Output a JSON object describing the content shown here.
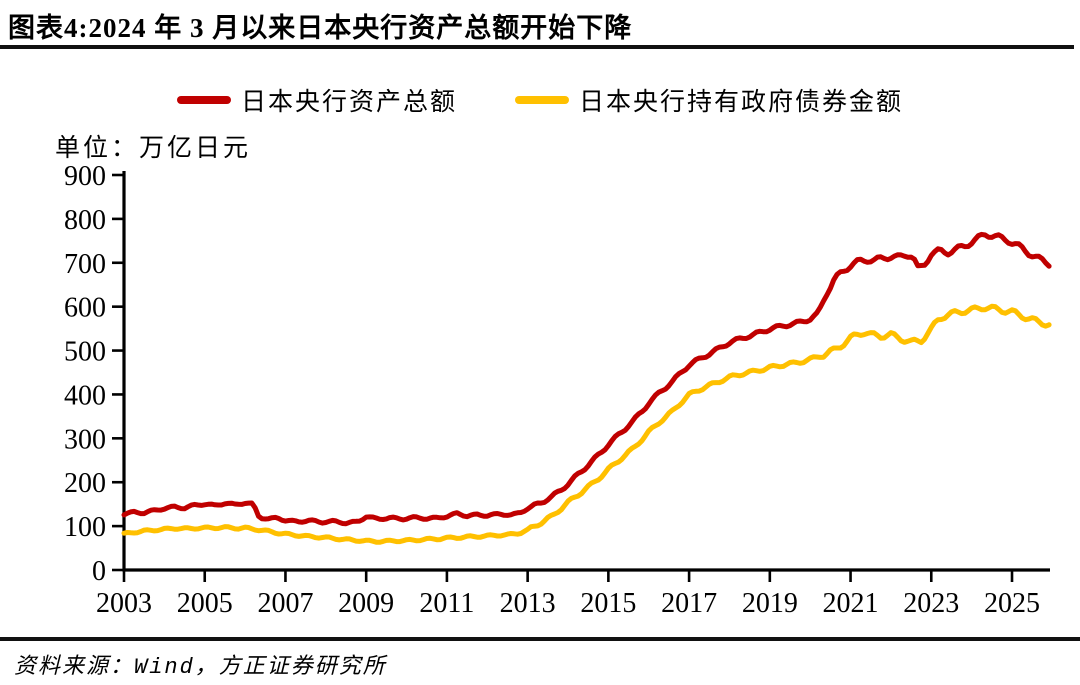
{
  "header": {
    "title": "图表4:2024 年 3 月以来日本央行资产总额开始下降"
  },
  "legend": {
    "items": [
      {
        "label": "日本央行资产总额",
        "color": "#C00000"
      },
      {
        "label": "日本央行持有政府债券金额",
        "color": "#FFC000"
      }
    ]
  },
  "chart": {
    "unit_label": "单位：万亿日元",
    "y_axis": {
      "ticks": [
        900,
        800,
        700,
        600,
        500,
        400,
        300,
        200,
        100,
        0
      ]
    },
    "x_axis": {
      "ticks": [
        2003,
        2005,
        2007,
        2009,
        2011,
        2013,
        2015,
        2017,
        2019,
        2021,
        2023,
        2025
      ]
    }
  },
  "source": {
    "text": "资料来源：Wind，方正证券研究所"
  },
  "chart_data": {
    "type": "line",
    "title": "图表4:2024 年 3 月以来日本央行资产总额开始下降",
    "xlabel": "",
    "ylabel": "万亿日元",
    "ylim": [
      0,
      900
    ],
    "xlim": [
      2003,
      2026
    ],
    "grid": false,
    "legend_position": "top",
    "series": [
      {
        "name": "日本央行资产总额",
        "color": "#C00000",
        "points": [
          [
            2003.0,
            127
          ],
          [
            2003.25,
            132
          ],
          [
            2003.5,
            130
          ],
          [
            2003.75,
            136
          ],
          [
            2004.0,
            140
          ],
          [
            2004.25,
            144
          ],
          [
            2004.5,
            141
          ],
          [
            2004.75,
            148
          ],
          [
            2005.0,
            150
          ],
          [
            2005.25,
            147
          ],
          [
            2005.5,
            152
          ],
          [
            2005.75,
            149
          ],
          [
            2006.0,
            153
          ],
          [
            2006.2,
            150
          ],
          [
            2006.35,
            120
          ],
          [
            2006.6,
            116
          ],
          [
            2006.8,
            119
          ],
          [
            2007.0,
            113
          ],
          [
            2007.3,
            110
          ],
          [
            2007.6,
            113
          ],
          [
            2007.9,
            109
          ],
          [
            2008.2,
            111
          ],
          [
            2008.5,
            107
          ],
          [
            2008.8,
            110
          ],
          [
            2009.0,
            122
          ],
          [
            2009.3,
            116
          ],
          [
            2009.6,
            119
          ],
          [
            2009.9,
            116
          ],
          [
            2010.2,
            120
          ],
          [
            2010.5,
            117
          ],
          [
            2010.8,
            119
          ],
          [
            2011.0,
            122
          ],
          [
            2011.25,
            129
          ],
          [
            2011.5,
            123
          ],
          [
            2011.75,
            126
          ],
          [
            2012.0,
            124
          ],
          [
            2012.3,
            128
          ],
          [
            2012.6,
            125
          ],
          [
            2012.8,
            130
          ],
          [
            2013.0,
            140
          ],
          [
            2013.3,
            152
          ],
          [
            2013.6,
            167
          ],
          [
            2013.8,
            180
          ],
          [
            2014.0,
            196
          ],
          [
            2014.3,
            222
          ],
          [
            2014.6,
            248
          ],
          [
            2014.8,
            266
          ],
          [
            2015.0,
            286
          ],
          [
            2015.3,
            312
          ],
          [
            2015.6,
            338
          ],
          [
            2015.8,
            358
          ],
          [
            2016.0,
            380
          ],
          [
            2016.3,
            407
          ],
          [
            2016.6,
            430
          ],
          [
            2016.8,
            450
          ],
          [
            2017.0,
            467
          ],
          [
            2017.3,
            483
          ],
          [
            2017.6,
            497
          ],
          [
            2017.8,
            508
          ],
          [
            2018.0,
            518
          ],
          [
            2018.3,
            528
          ],
          [
            2018.6,
            536
          ],
          [
            2018.8,
            543
          ],
          [
            2019.0,
            549
          ],
          [
            2019.3,
            556
          ],
          [
            2019.6,
            561
          ],
          [
            2019.8,
            566
          ],
          [
            2020.0,
            572
          ],
          [
            2020.2,
            585
          ],
          [
            2020.4,
            630
          ],
          [
            2020.6,
            662
          ],
          [
            2020.8,
            680
          ],
          [
            2021.0,
            694
          ],
          [
            2021.2,
            703
          ],
          [
            2021.4,
            707
          ],
          [
            2021.6,
            705
          ],
          [
            2021.8,
            711
          ],
          [
            2022.0,
            714
          ],
          [
            2022.2,
            712
          ],
          [
            2022.4,
            719
          ],
          [
            2022.55,
            716
          ],
          [
            2022.65,
            687
          ],
          [
            2022.8,
            691
          ],
          [
            2023.0,
            721
          ],
          [
            2023.2,
            727
          ],
          [
            2023.4,
            723
          ],
          [
            2023.6,
            730
          ],
          [
            2023.8,
            737
          ],
          [
            2024.0,
            747
          ],
          [
            2024.2,
            758
          ],
          [
            2024.35,
            766
          ],
          [
            2024.5,
            762
          ],
          [
            2024.7,
            757
          ],
          [
            2024.9,
            751
          ],
          [
            2025.0,
            746
          ],
          [
            2025.2,
            736
          ],
          [
            2025.4,
            723
          ],
          [
            2025.6,
            712
          ],
          [
            2025.8,
            703
          ],
          [
            2025.92,
            698
          ]
        ]
      },
      {
        "name": "日本央行持有政府债券金额",
        "color": "#FFC000",
        "points": [
          [
            2003.0,
            82
          ],
          [
            2003.25,
            86
          ],
          [
            2003.5,
            89
          ],
          [
            2003.75,
            91
          ],
          [
            2004.0,
            93
          ],
          [
            2004.3,
            95
          ],
          [
            2004.6,
            94
          ],
          [
            2004.9,
            96
          ],
          [
            2005.2,
            96
          ],
          [
            2005.5,
            97
          ],
          [
            2005.8,
            95
          ],
          [
            2006.0,
            96
          ],
          [
            2006.3,
            92
          ],
          [
            2006.6,
            88
          ],
          [
            2006.9,
            83
          ],
          [
            2007.2,
            80
          ],
          [
            2007.5,
            77
          ],
          [
            2007.8,
            75
          ],
          [
            2008.1,
            73
          ],
          [
            2008.4,
            70
          ],
          [
            2008.7,
            68
          ],
          [
            2009.0,
            66
          ],
          [
            2009.3,
            65
          ],
          [
            2009.6,
            66
          ],
          [
            2009.9,
            67
          ],
          [
            2010.2,
            68
          ],
          [
            2010.5,
            70
          ],
          [
            2010.8,
            71
          ],
          [
            2011.0,
            73
          ],
          [
            2011.3,
            74
          ],
          [
            2011.6,
            76
          ],
          [
            2011.9,
            77
          ],
          [
            2012.2,
            79
          ],
          [
            2012.5,
            80
          ],
          [
            2012.8,
            84
          ],
          [
            2013.0,
            91
          ],
          [
            2013.3,
            106
          ],
          [
            2013.6,
            122
          ],
          [
            2013.8,
            138
          ],
          [
            2014.0,
            154
          ],
          [
            2014.3,
            175
          ],
          [
            2014.6,
            196
          ],
          [
            2014.8,
            212
          ],
          [
            2015.0,
            229
          ],
          [
            2015.3,
            253
          ],
          [
            2015.6,
            275
          ],
          [
            2015.8,
            295
          ],
          [
            2016.0,
            314
          ],
          [
            2016.3,
            340
          ],
          [
            2016.6,
            362
          ],
          [
            2016.8,
            382
          ],
          [
            2017.0,
            399
          ],
          [
            2017.3,
            413
          ],
          [
            2017.6,
            424
          ],
          [
            2017.8,
            432
          ],
          [
            2018.0,
            439
          ],
          [
            2018.3,
            447
          ],
          [
            2018.6,
            452
          ],
          [
            2018.8,
            457
          ],
          [
            2019.0,
            461
          ],
          [
            2019.3,
            467
          ],
          [
            2019.6,
            471
          ],
          [
            2019.8,
            475
          ],
          [
            2020.0,
            480
          ],
          [
            2020.3,
            489
          ],
          [
            2020.6,
            501
          ],
          [
            2020.8,
            514
          ],
          [
            2021.0,
            528
          ],
          [
            2021.2,
            538
          ],
          [
            2021.35,
            542
          ],
          [
            2021.5,
            536
          ],
          [
            2021.75,
            533
          ],
          [
            2022.0,
            536
          ],
          [
            2022.25,
            527
          ],
          [
            2022.5,
            519
          ],
          [
            2022.75,
            523
          ],
          [
            2023.0,
            548
          ],
          [
            2023.2,
            574
          ],
          [
            2023.4,
            581
          ],
          [
            2023.6,
            586
          ],
          [
            2023.8,
            590
          ],
          [
            2024.0,
            592
          ],
          [
            2024.3,
            599
          ],
          [
            2024.5,
            596
          ],
          [
            2024.75,
            592
          ],
          [
            2025.0,
            588
          ],
          [
            2025.2,
            581
          ],
          [
            2025.4,
            573
          ],
          [
            2025.6,
            567
          ],
          [
            2025.8,
            562
          ],
          [
            2025.92,
            559
          ]
        ]
      }
    ]
  }
}
